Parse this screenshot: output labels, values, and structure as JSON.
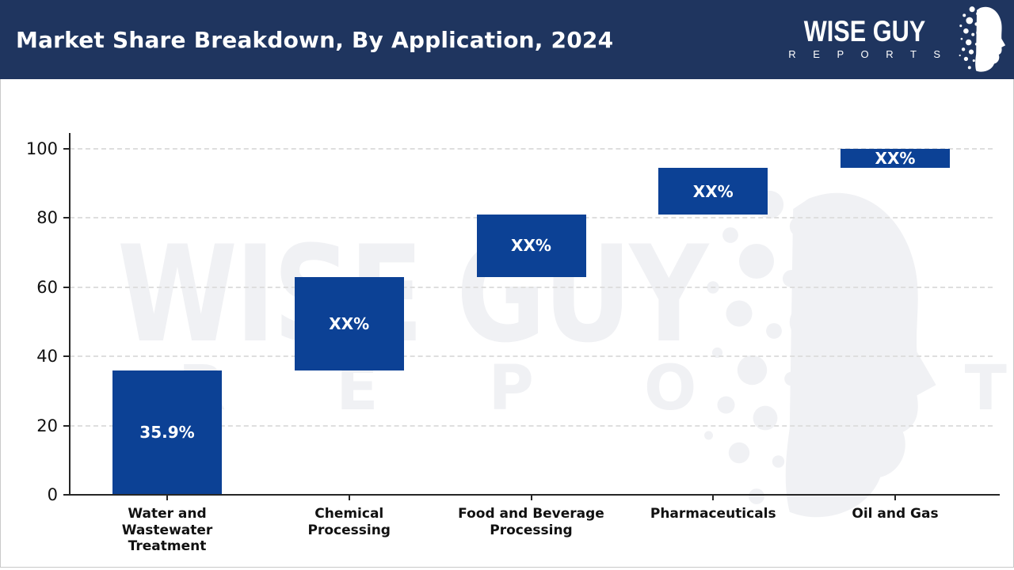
{
  "header": {
    "title": "Market Share Breakdown, By Application, 2024",
    "logo": {
      "wordmark": "WISE GUY",
      "subtitle": "R E P O R T S"
    }
  },
  "watermark": {
    "wordmark": "WISE GUY",
    "subtitle": "R E P O R T S"
  },
  "chart_data": {
    "type": "bar",
    "subtype": "waterfall",
    "title": "Market Share Breakdown, By Application, 2024",
    "categories": [
      "Water and Wastewater Treatment",
      "Chemical Processing",
      "Food and Beverage Processing",
      "Pharmaceuticals",
      "Oil and Gas"
    ],
    "category_lines": [
      [
        "Water and",
        "Wastewater",
        "Treatment"
      ],
      [
        "Chemical",
        "Processing"
      ],
      [
        "Food and Beverage",
        "Processing"
      ],
      [
        "Pharmaceuticals"
      ],
      [
        "Oil and Gas"
      ]
    ],
    "segments": [
      {
        "category": "Water and Wastewater Treatment",
        "label": "35.9%",
        "start": 0,
        "end": 35.9
      },
      {
        "category": "Chemical Processing",
        "label": "XX%",
        "start": 35.9,
        "end": 62.9
      },
      {
        "category": "Food and Beverage Processing",
        "label": "XX%",
        "start": 62.9,
        "end": 80.9
      },
      {
        "category": "Pharmaceuticals",
        "label": "XX%",
        "start": 81.0,
        "end": 94.3
      },
      {
        "category": "Oil and Gas",
        "label": "XX%",
        "start": 94.3,
        "end": 100.0
      }
    ],
    "xlabel": "",
    "ylabel": "",
    "yticks": [
      0,
      20,
      40,
      60,
      80,
      100
    ],
    "ylim": [
      0,
      105
    ],
    "grid": "horizontal-dashed",
    "legend": "none"
  },
  "colors": {
    "header_bg": "#1f355f",
    "header_text": "#ffffff",
    "bar": "#0c4195",
    "bar_label": "#ffffff",
    "axis": "#262626",
    "tick_text": "#111111",
    "grid": "#dedede",
    "watermark": "#f0f1f4",
    "border": "#c9c9c9",
    "background": "#ffffff"
  }
}
